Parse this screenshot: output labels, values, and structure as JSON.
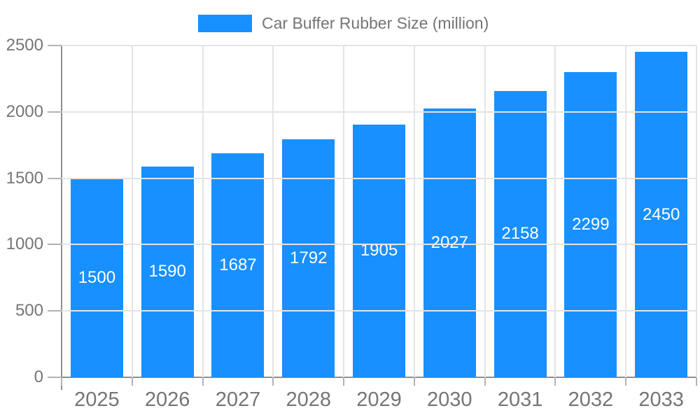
{
  "chart_data": {
    "type": "bar",
    "title": "Car Buffer Rubber Size (million)",
    "legend": [
      "Car Buffer Rubber Size (million)"
    ],
    "legend_position": "top",
    "categories": [
      "2025",
      "2026",
      "2027",
      "2028",
      "2029",
      "2030",
      "2031",
      "2032",
      "2033"
    ],
    "values": [
      1500,
      1590,
      1687,
      1792,
      1905,
      2027,
      2158,
      2299,
      2450
    ],
    "xlabel": "",
    "ylabel": "",
    "ylim": [
      0,
      2500
    ],
    "yticks": [
      0,
      500,
      1000,
      1500,
      2000,
      2500
    ],
    "grid": true,
    "data_labels": "inside-center",
    "colors": {
      "bar": "#1890ff",
      "bar_label": "#ffffff",
      "axis_text": "#757575",
      "gridline": "#e4e4e4",
      "axis_line": "#8f8f8f",
      "tick": "#b3b3b3",
      "background": "#ffffff"
    }
  }
}
